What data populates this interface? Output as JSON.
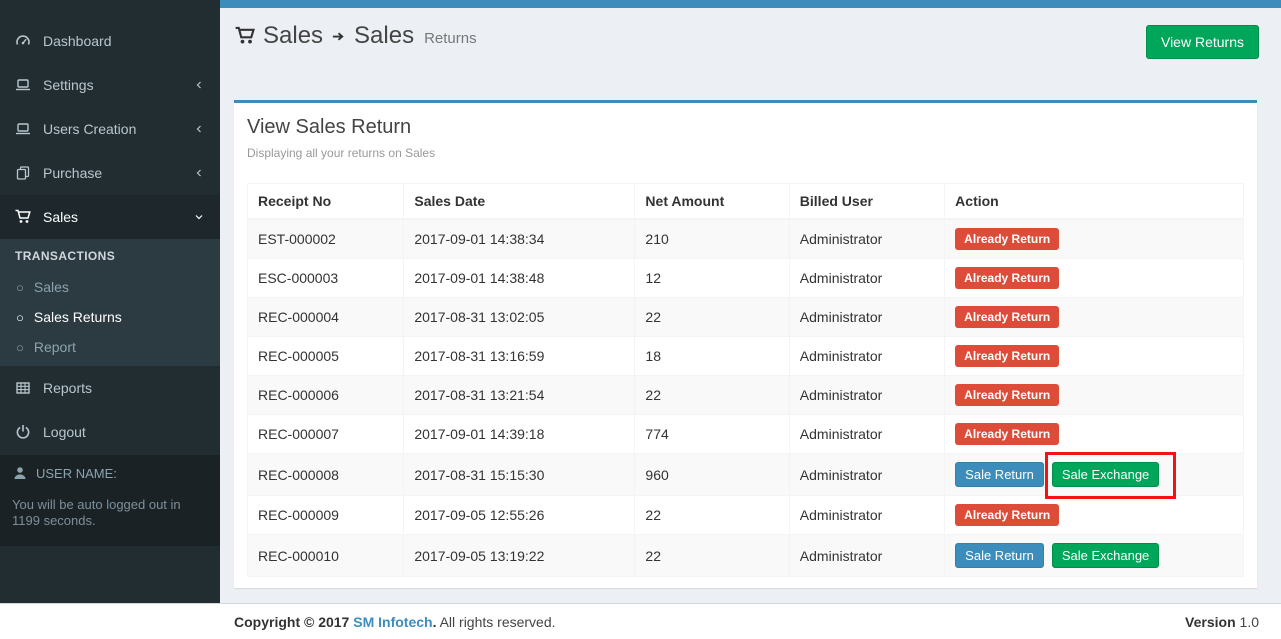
{
  "colors": {
    "accent_blue": "#3c8dbc",
    "success_green": "#00a65a",
    "danger_red": "#dd4b39",
    "annotation_red": "#f21313",
    "sidebar_bg": "#222d32",
    "content_bg": "#ecf0f5"
  },
  "sidebar": {
    "items": [
      {
        "label": "Dashboard",
        "icon": "dashboard-icon"
      },
      {
        "label": "Settings",
        "icon": "laptop-icon",
        "chevron": "left"
      },
      {
        "label": "Users Creation",
        "icon": "laptop-icon",
        "chevron": "left"
      },
      {
        "label": "Purchase",
        "icon": "copy-icon",
        "chevron": "left"
      },
      {
        "label": "Sales",
        "icon": "cart-icon",
        "chevron": "down",
        "active": true
      }
    ],
    "submenu_header": "TRANSACTIONS",
    "submenu": [
      {
        "label": "Sales",
        "active": false
      },
      {
        "label": "Sales Returns",
        "active": true
      },
      {
        "label": "Report",
        "active": false
      }
    ],
    "items_bottom": [
      {
        "label": "Reports",
        "icon": "table-icon"
      },
      {
        "label": "Logout",
        "icon": "power-icon"
      }
    ],
    "user_panel": {
      "label": "USER NAME:",
      "note_line1": "You will be auto logged out in",
      "note_line2": "1199 seconds."
    }
  },
  "header": {
    "title_primary": "Sales",
    "title_secondary": "Sales",
    "title_small": "Returns",
    "button_label": "View Returns"
  },
  "panel": {
    "title": "View Sales Return",
    "subtitle": "Displaying all your returns on Sales",
    "table": {
      "columns": [
        "Receipt No",
        "Sales Date",
        "Net Amount",
        "Billed User",
        "Action"
      ],
      "rows": [
        {
          "receipt": "EST-000002",
          "date": "2017-09-01 14:38:34",
          "amount": "210",
          "user": "Administrator",
          "actions": [
            {
              "type": "badge",
              "label": "Already Return"
            }
          ]
        },
        {
          "receipt": "ESC-000003",
          "date": "2017-09-01 14:38:48",
          "amount": "12",
          "user": "Administrator",
          "actions": [
            {
              "type": "badge",
              "label": "Already Return"
            }
          ]
        },
        {
          "receipt": "REC-000004",
          "date": "2017-08-31 13:02:05",
          "amount": "22",
          "user": "Administrator",
          "actions": [
            {
              "type": "badge",
              "label": "Already Return"
            }
          ]
        },
        {
          "receipt": "REC-000005",
          "date": "2017-08-31 13:16:59",
          "amount": "18",
          "user": "Administrator",
          "actions": [
            {
              "type": "badge",
              "label": "Already Return"
            }
          ]
        },
        {
          "receipt": "REC-000006",
          "date": "2017-08-31 13:21:54",
          "amount": "22",
          "user": "Administrator",
          "actions": [
            {
              "type": "badge",
              "label": "Already Return"
            }
          ]
        },
        {
          "receipt": "REC-000007",
          "date": "2017-09-01 14:39:18",
          "amount": "774",
          "user": "Administrator",
          "actions": [
            {
              "type": "badge",
              "label": "Already Return"
            }
          ]
        },
        {
          "receipt": "REC-000008",
          "date": "2017-08-31 15:15:30",
          "amount": "960",
          "user": "Administrator",
          "actions": [
            {
              "type": "blue",
              "label": "Sale Return"
            },
            {
              "type": "green",
              "label": "Sale Exchange",
              "highlight": true
            }
          ]
        },
        {
          "receipt": "REC-000009",
          "date": "2017-09-05 12:55:26",
          "amount": "22",
          "user": "Administrator",
          "actions": [
            {
              "type": "badge",
              "label": "Already Return"
            }
          ]
        },
        {
          "receipt": "REC-000010",
          "date": "2017-09-05 13:19:22",
          "amount": "22",
          "user": "Administrator",
          "actions": [
            {
              "type": "blue",
              "label": "Sale Return"
            },
            {
              "type": "green",
              "label": "Sale Exchange"
            }
          ]
        }
      ]
    }
  },
  "footer": {
    "copyright_prefix": "Copyright © 2017 ",
    "company": "SM Infotech",
    "dot": ".",
    "rights": " All rights reserved.",
    "version_label": "Version",
    "version_value": "1.0"
  }
}
